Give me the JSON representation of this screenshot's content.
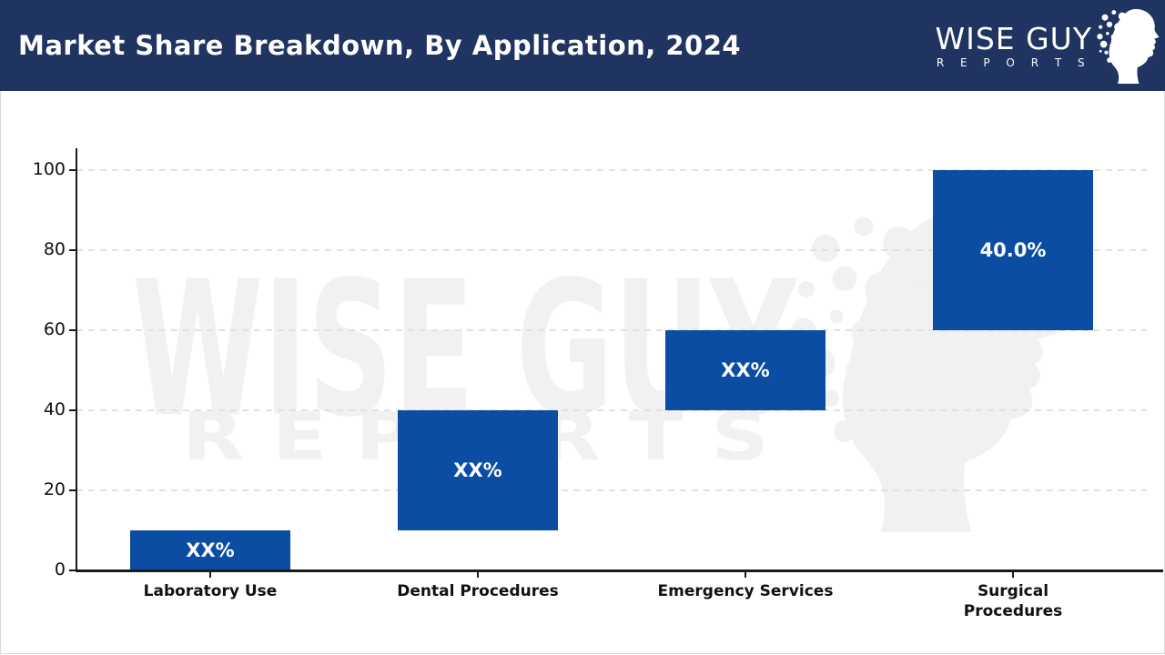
{
  "header": {
    "title": "Market Share Breakdown, By Application, 2024",
    "logo": {
      "line1": "WISE GUY",
      "line2": "R E P O R T S"
    }
  },
  "watermark": {
    "line1": "WISE GUY",
    "line2": "R E P O R T S"
  },
  "chart_data": {
    "type": "bar",
    "subtype": "floating-waterfall",
    "title": "Market Share Breakdown, By Application, 2024",
    "categories": [
      "Laboratory Use",
      "Dental Procedures",
      "Emergency Services",
      "Surgical\nProcedures"
    ],
    "series": [
      {
        "name": "Market Share",
        "bars": [
          {
            "category": "Laboratory Use",
            "from": 0,
            "to": 10,
            "label": "XX%"
          },
          {
            "category": "Dental Procedures",
            "from": 10,
            "to": 40,
            "label": "XX%"
          },
          {
            "category": "Emergency Services",
            "from": 40,
            "to": 60,
            "label": "XX%"
          },
          {
            "category": "Surgical Procedures",
            "from": 60,
            "to": 100,
            "label": "40.0%"
          }
        ]
      }
    ],
    "xlabel": "",
    "ylabel": "",
    "ylim": [
      0,
      100
    ],
    "yticks": [
      0,
      20,
      40,
      60,
      80,
      100
    ],
    "grid": "horizontal-dashed",
    "legend": "none",
    "bar_color": "#0b4da2",
    "bar_label_color": "#ffffff"
  },
  "colors": {
    "header_bg": "#1f3461",
    "bar": "#0b4da2",
    "grid": "#e1e1e1",
    "axis": "#1a1a1a",
    "watermark": "#f1f1f3",
    "frame_border": "#d9d9d9"
  }
}
